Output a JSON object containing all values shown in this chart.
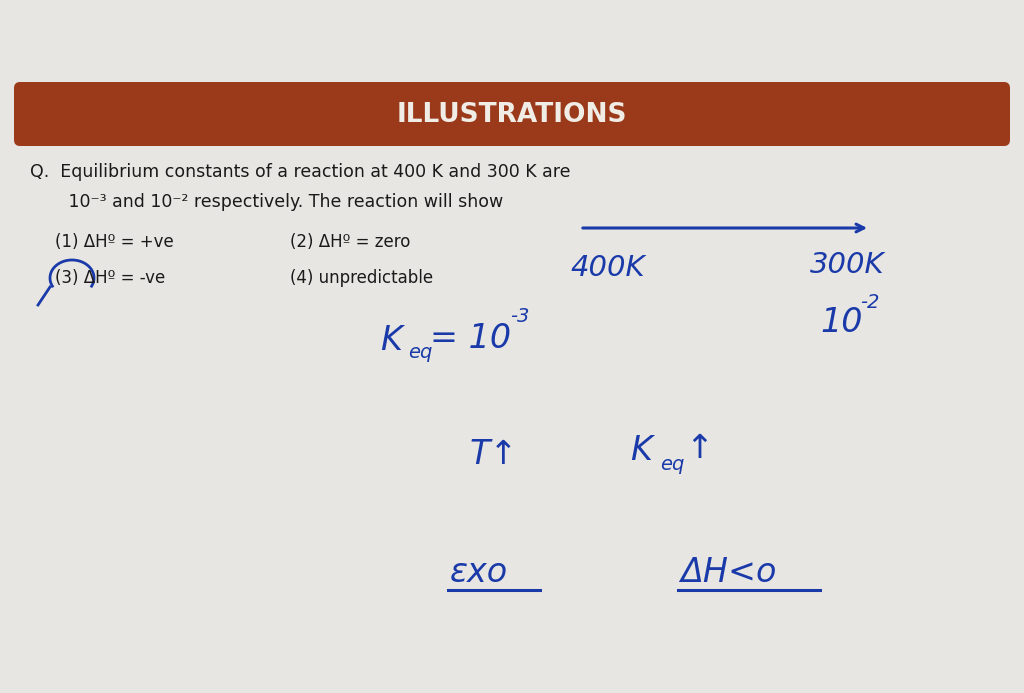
{
  "bg_color": "#e8e6e2",
  "header_color": "#9b3a1a",
  "header_text": "ILLUSTRATIONS",
  "header_text_color": "#f0ece6",
  "question_color": "#1a1a1a",
  "q_line1": "Q.  Equilibrium constants of a reaction at 400 K and 300 K are",
  "q_line2": "       10⁻³ and 10⁻² respectively. The reaction will show",
  "option1": "(1) ΔHº = +ve",
  "option2": "(2) ΔHº = zero",
  "option3": "(3) ΔHº = -ve",
  "option4": "(4) unpredictable",
  "hw_color": "#1a3aaa",
  "figsize": [
    10.24,
    6.93
  ],
  "dpi": 100
}
